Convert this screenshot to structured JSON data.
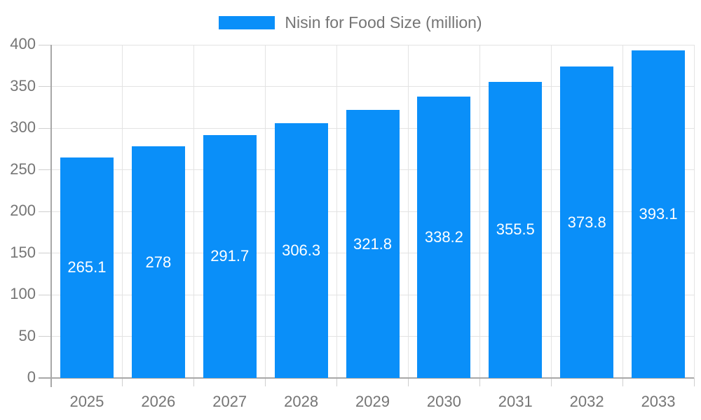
{
  "legend": {
    "label": "Nisin for Food Size (million)"
  },
  "chart_data": {
    "type": "bar",
    "title": "Nisin for Food Size (million)",
    "categories": [
      "2025",
      "2026",
      "2027",
      "2028",
      "2029",
      "2030",
      "2031",
      "2032",
      "2033"
    ],
    "values": [
      265.1,
      278,
      291.7,
      306.3,
      321.8,
      338.2,
      355.5,
      373.8,
      393.1
    ],
    "value_labels": [
      "265.1",
      "278",
      "291.7",
      "306.3",
      "321.8",
      "338.2",
      "355.5",
      "373.8",
      "393.1"
    ],
    "series_name": "Nisin for Food Size (million)",
    "xlabel": "",
    "ylabel": "",
    "ylim": [
      0,
      400
    ],
    "ytick_step": 50,
    "ytick_labels": [
      "0",
      "50",
      "100",
      "150",
      "200",
      "250",
      "300",
      "350",
      "400"
    ],
    "grid": true,
    "legend_position": "top"
  },
  "colors": {
    "bar": "#0a8ff9",
    "axis_text": "#757575",
    "grid_line": "#e3e3e3",
    "axis_line": "#a8a8a8",
    "tick_line": "#cfcfcf",
    "value_label": "#ffffff",
    "background": "#ffffff"
  }
}
